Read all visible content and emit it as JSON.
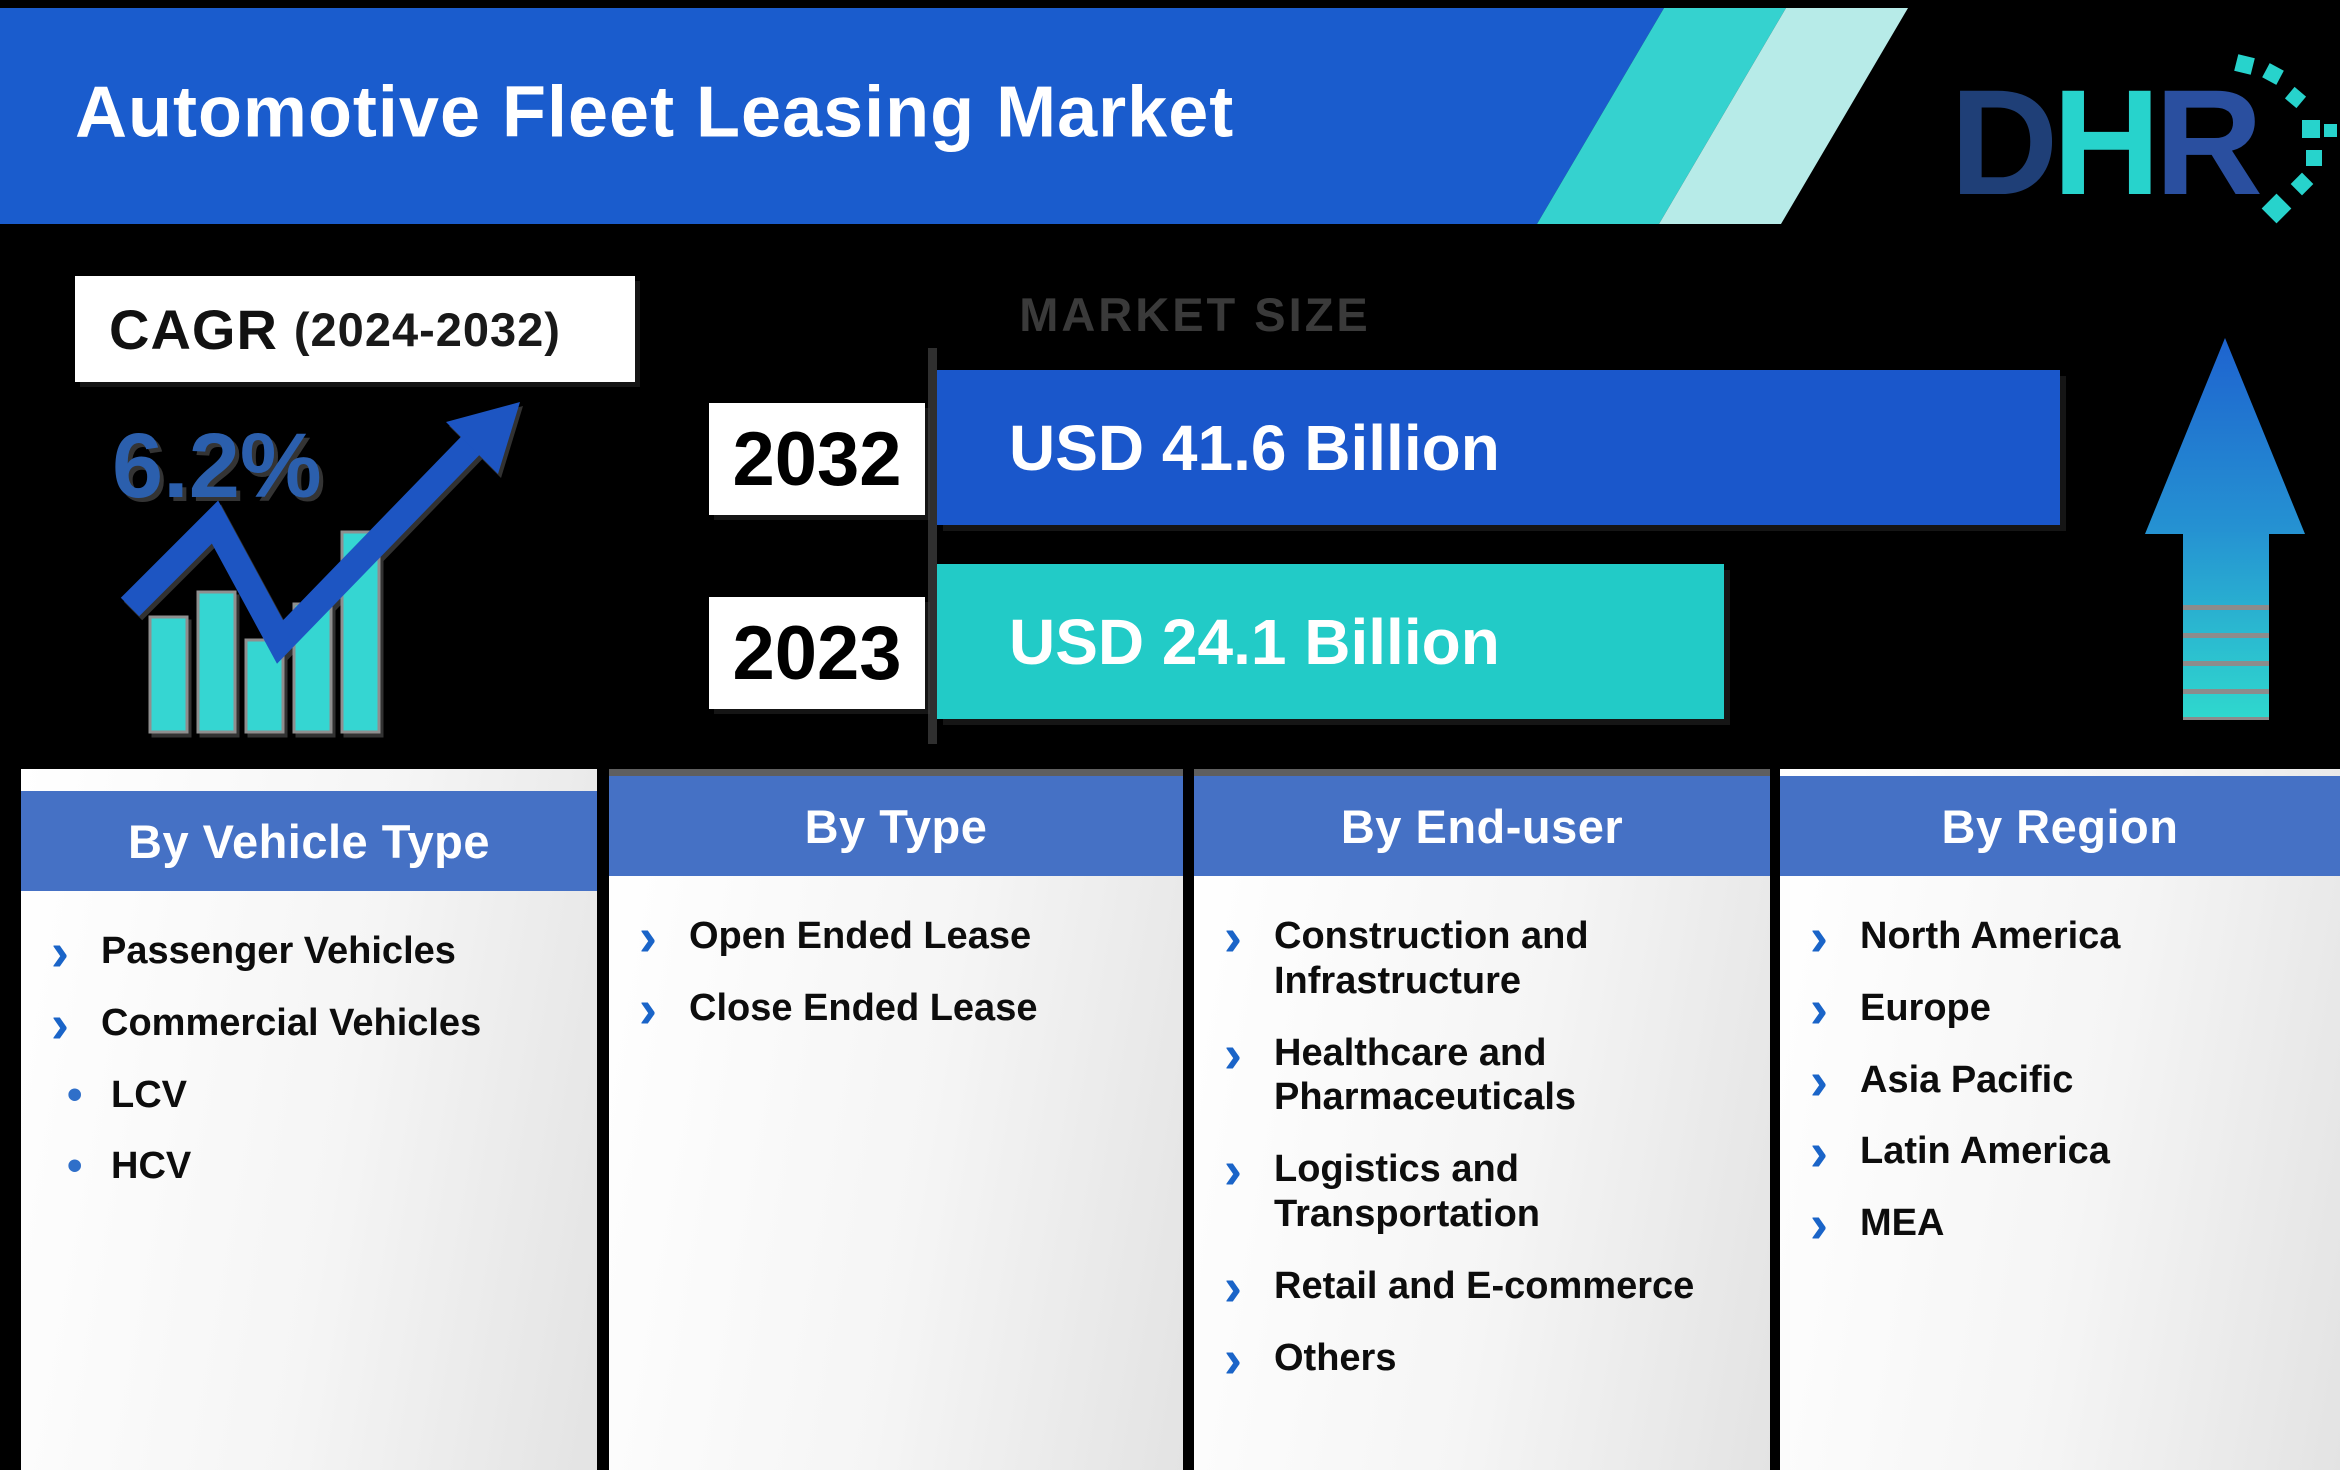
{
  "header": {
    "title": "Automotive Fleet Leasing Market",
    "logo": {
      "d": "D",
      "h": "H",
      "r": "R"
    }
  },
  "cagr": {
    "label": "CAGR",
    "range": "(2024-2032)",
    "value": "6.2%"
  },
  "market_size": {
    "heading": "MARKET SIZE",
    "rows": [
      {
        "year": "2032",
        "value": "USD 41.6 Billion"
      },
      {
        "year": "2023",
        "value": "USD 24.1 Billion"
      }
    ]
  },
  "chart_data": {
    "type": "bar",
    "orientation": "horizontal",
    "title": "MARKET SIZE",
    "categories": [
      "2032",
      "2023"
    ],
    "values": [
      41.6,
      24.1
    ],
    "unit": "USD Billion",
    "bar_labels": [
      "USD 41.6 Billion",
      "USD 24.1 Billion"
    ],
    "bar_colors": [
      "#1a57cb",
      "#22cbc7"
    ],
    "annotations": {
      "cagr_value": "6.2%",
      "cagr_period": "(2024-2032)"
    },
    "legend": "none",
    "grid": false
  },
  "markers": {
    "chevron": "›",
    "dot": "•"
  },
  "segments": {
    "columns": [
      {
        "title": "By Vehicle Type",
        "items": [
          {
            "label": "Passenger Vehicles",
            "marker": "chevron"
          },
          {
            "label": "Commercial Vehicles",
            "marker": "chevron"
          },
          {
            "label": "LCV",
            "marker": "dot"
          },
          {
            "label": "HCV",
            "marker": "dot"
          }
        ]
      },
      {
        "title": "By Type",
        "items": [
          {
            "label": "Open Ended Lease",
            "marker": "chevron"
          },
          {
            "label": "Close Ended Lease",
            "marker": "chevron"
          }
        ]
      },
      {
        "title": "By End-user",
        "items": [
          {
            "label": "Construction and Infrastructure",
            "marker": "chevron"
          },
          {
            "label": "Healthcare and Pharmaceuticals",
            "marker": "chevron"
          },
          {
            "label": "Logistics and Transportation",
            "marker": "chevron"
          },
          {
            "label": "Retail and E-commerce",
            "marker": "chevron"
          },
          {
            "label": "Others",
            "marker": "chevron"
          }
        ]
      },
      {
        "title": "By Region",
        "items": [
          {
            "label": "North America",
            "marker": "chevron"
          },
          {
            "label": "Europe",
            "marker": "chevron"
          },
          {
            "label": "Asia Pacific",
            "marker": "chevron"
          },
          {
            "label": "Latin America",
            "marker": "chevron"
          },
          {
            "label": "MEA",
            "marker": "chevron"
          }
        ]
      }
    ]
  },
  "colors": {
    "banner_blue": "#1a5ccd",
    "stripe_teal": "#35d2cf",
    "stripe_light_teal": "#b7ebe8",
    "card_header_blue": "#4571c5",
    "bar_blue": "#1a57cb",
    "bar_teal": "#22cbc7",
    "accent_chevron": "#1a64c8",
    "cagr_text_blue": "#2b5fad",
    "market_size_gray": "#3a3a3a",
    "logo_navy": "#1f3f77",
    "logo_teal": "#27d3cc"
  }
}
